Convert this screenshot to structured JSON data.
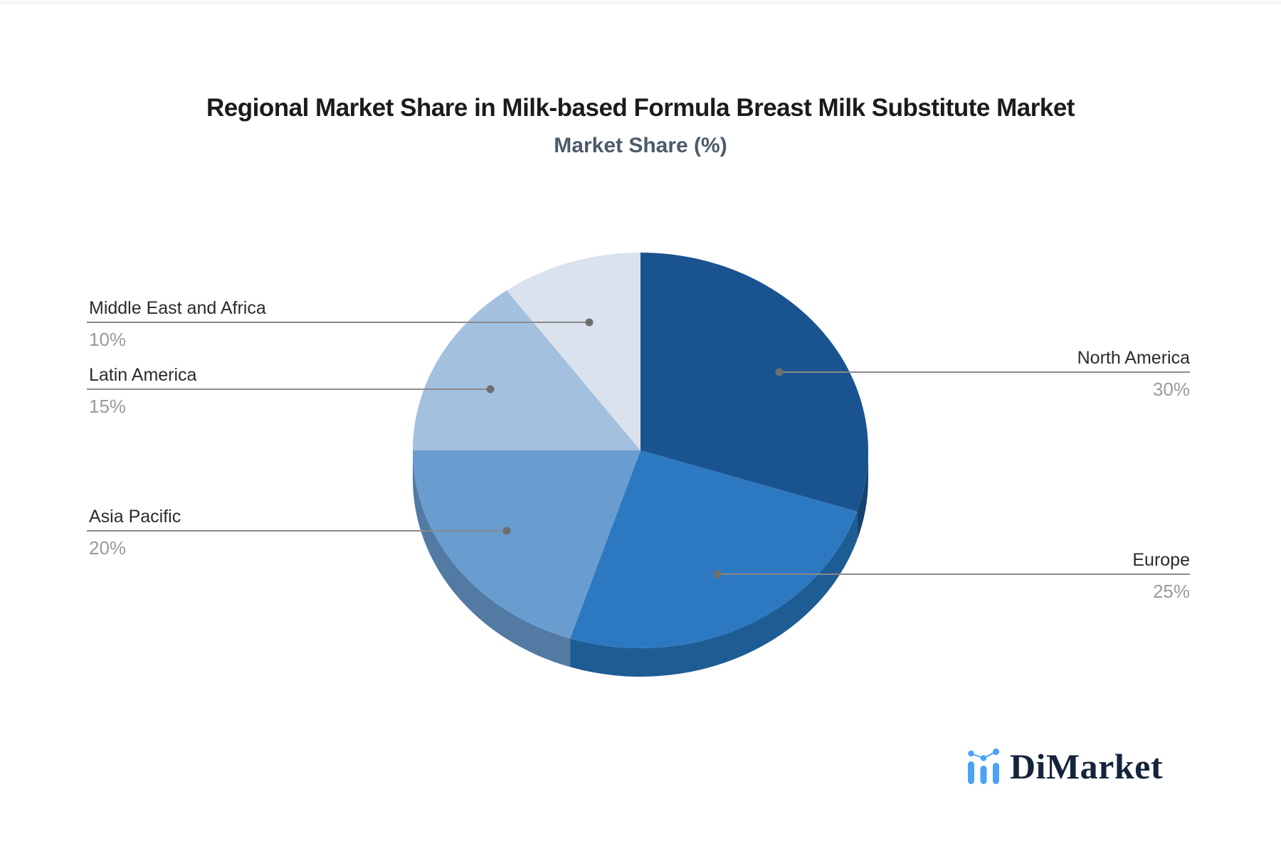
{
  "page": {
    "background": "#ffffff",
    "top_strip_color": "#f7f8f9"
  },
  "chart_data": {
    "type": "pie",
    "style": "3d-pie",
    "title": "Regional Market Share in Milk-based Formula Breast Milk Substitute Market",
    "subtitle": "Market Share (%)",
    "value_unit": "%",
    "start_angle_deg": 0,
    "direction": "clockwise",
    "legend_position": "none",
    "labeling": "callout-lines-with-dots",
    "categories": [
      "North America",
      "Europe",
      "Asia Pacific",
      "Latin America",
      "Middle East and Africa"
    ],
    "values": [
      30,
      25,
      20,
      15,
      10
    ],
    "slices": [
      {
        "label": "North America",
        "value": 30,
        "pct_label": "30%",
        "color": "#1A5490",
        "side_color": "#15436F",
        "callout_side": "right"
      },
      {
        "label": "Europe",
        "value": 25,
        "pct_label": "25%",
        "color": "#2D79C1",
        "side_color": "#1E5C94",
        "callout_side": "right"
      },
      {
        "label": "Asia Pacific",
        "value": 20,
        "pct_label": "20%",
        "color": "#699CCF",
        "side_color": "#527AA3",
        "callout_side": "left"
      },
      {
        "label": "Latin America",
        "value": 15,
        "pct_label": "15%",
        "color": "#A3C1DE",
        "side_color": "#7FA3C4",
        "callout_side": "left"
      },
      {
        "label": "Middle East and Africa",
        "value": 10,
        "pct_label": "10%",
        "color": "#DAE2ED",
        "side_color": "#B6C4D6",
        "callout_side": "left"
      }
    ],
    "title_color": "#1b1b1b",
    "subtitle_color": "#4d5a6a",
    "label_text_color": "#2b2b2b",
    "pct_text_color": "#9a9a9b",
    "leader_line_color": "#8a8a8a",
    "leader_dot_color": "#6e6e6e"
  },
  "branding": {
    "logo_text": "DiMarket",
    "logo_icon": "bar-chart-with-trend-dots",
    "logo_text_color": "#16233C",
    "logo_icon_color": "#4AA3F7"
  }
}
